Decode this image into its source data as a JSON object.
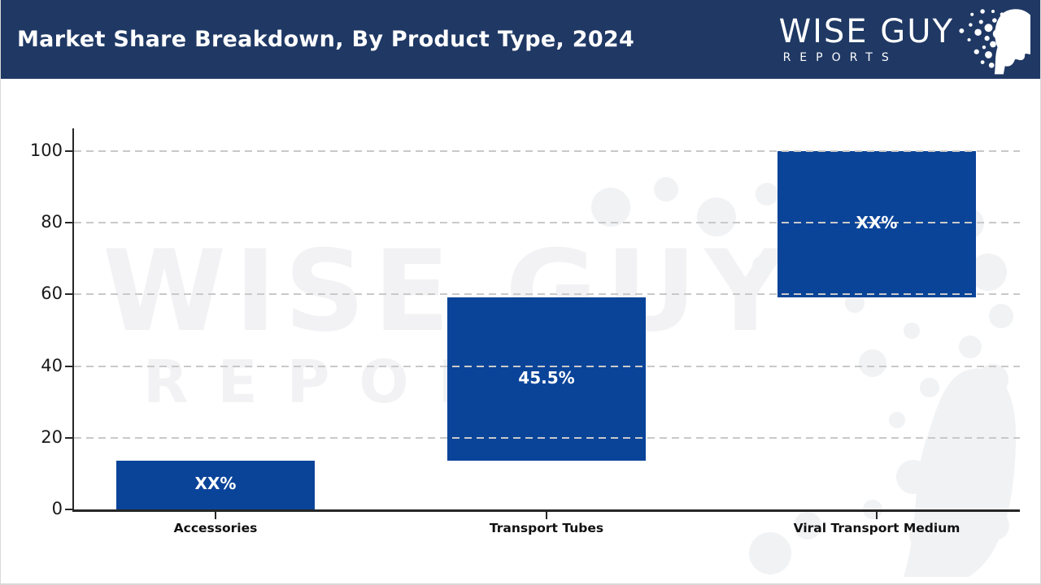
{
  "header": {
    "title": "Market Share Breakdown, By Product Type, 2024",
    "logo": {
      "wordmark": "WISE GUY",
      "subtext": "REPORTS"
    }
  },
  "watermark": {
    "line1": "WISE GUY",
    "line2": "REPORTS"
  },
  "chart_data": {
    "type": "bar",
    "subtype": "floating-waterfall-segments",
    "title": "Market Share Breakdown, By Product Type, 2024",
    "categories": [
      "Accessories",
      "Transport Tubes",
      "Viral Transport Medium"
    ],
    "segments": [
      {
        "category": "Accessories",
        "start": 0,
        "end": 13.6,
        "height": 13.6,
        "label": "XX%"
      },
      {
        "category": "Transport Tubes",
        "start": 13.6,
        "end": 59.1,
        "height": 45.5,
        "label": "45.5%"
      },
      {
        "category": "Viral Transport Medium",
        "start": 59.1,
        "end": 100,
        "height": 40.9,
        "label": "XX%"
      }
    ],
    "xlabel": "",
    "ylabel": "",
    "yticks": [
      0,
      20,
      40,
      60,
      80,
      100
    ],
    "ylim": [
      0,
      106
    ],
    "grid": "horizontal-dashed-over-bars",
    "legend": "none",
    "colors": {
      "bar": "#0a4499",
      "bar_label": "#ffffff",
      "header_bg": "#1f3864",
      "grid_line": "#c9c9c9",
      "axis": "#262626",
      "watermark": "#f2f2f4"
    }
  }
}
